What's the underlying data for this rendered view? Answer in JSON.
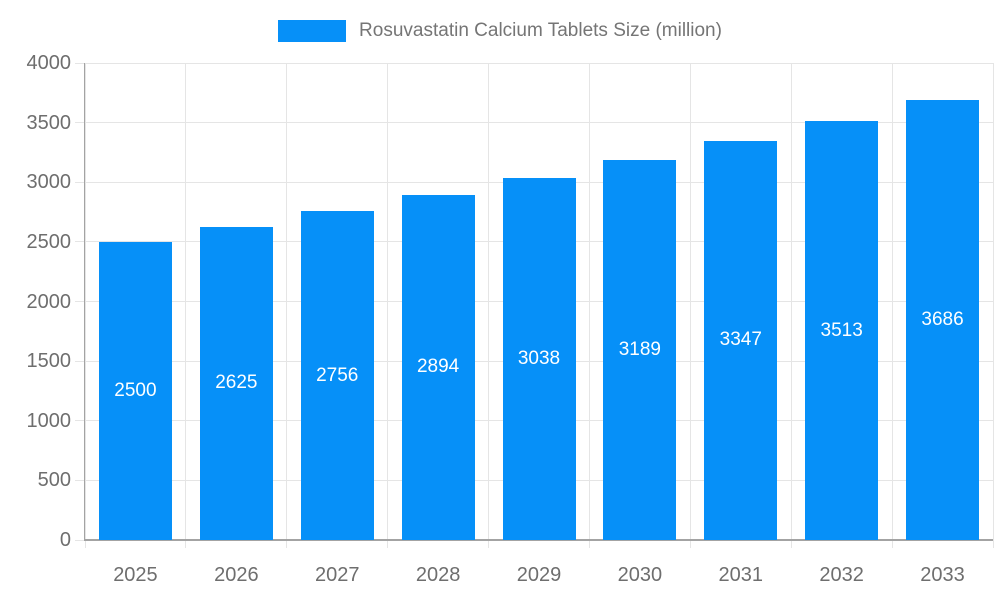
{
  "legend": {
    "label": "Rosuvastatin Calcium Tablets Size (million)"
  },
  "chart_data": {
    "type": "bar",
    "title": "Rosuvastatin Calcium Tablets Size (million)",
    "categories": [
      "2025",
      "2026",
      "2027",
      "2028",
      "2029",
      "2030",
      "2031",
      "2032",
      "2033"
    ],
    "values": [
      2500,
      2625,
      2756,
      2894,
      3038,
      3189,
      3347,
      3513,
      3686
    ],
    "value_labels": [
      "2500",
      "2625",
      "2756",
      "2894",
      "3038",
      "3189",
      "3347",
      "3513",
      "3686"
    ],
    "xlabel": "",
    "ylabel": "",
    "ylim": [
      0,
      4000
    ],
    "ytick_step": 500,
    "ytick_labels": [
      "0",
      "500",
      "1000",
      "1500",
      "2000",
      "2500",
      "3000",
      "3500",
      "4000"
    ],
    "grid": true,
    "legend_position": "top",
    "value_labels_position": "center-of-bar"
  },
  "colors": {
    "bar": "#0690f8",
    "grid": "#e5e5e5",
    "axis": "#a3a3a3",
    "tick_text": "#6e6e6e",
    "legend_text": "#757575",
    "value_label": "#ffffff",
    "background": "#ffffff"
  }
}
